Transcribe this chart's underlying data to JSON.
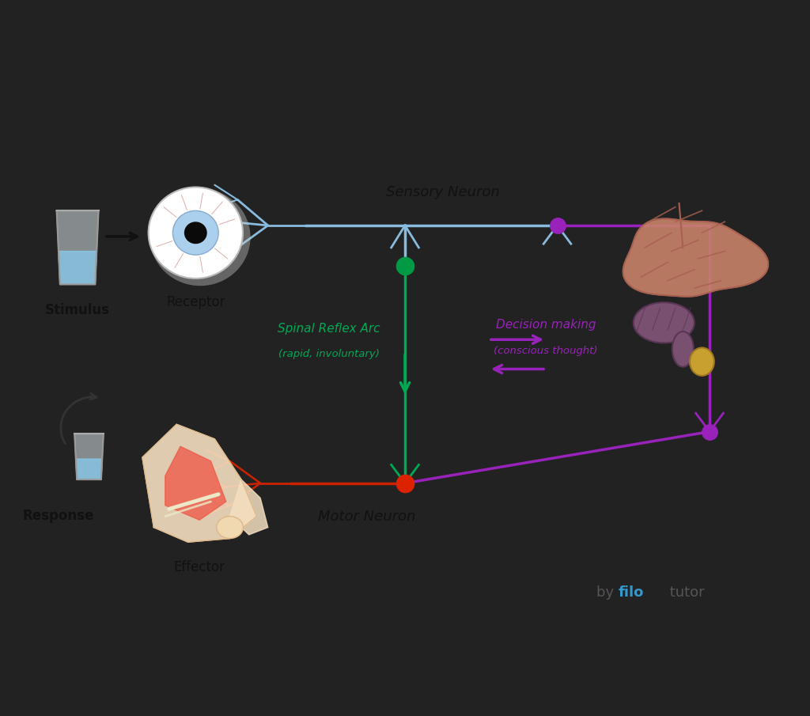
{
  "bg_outer": "#222222",
  "bg_inner": "#f5f3f8",
  "sensory_color": "#88bbdd",
  "motor_color": "#cc2200",
  "spinal_color": "#00aa55",
  "purple_color": "#9922bb",
  "green_node": "#009944",
  "red_node": "#dd2200",
  "purple_node": "#9922bb",
  "text_dark": "#111111",
  "spinal_text": "#00aa55",
  "decision_text": "#9922bb",
  "filo_color": "#3399cc",
  "stimulus_label": "Stimulus",
  "receptor_label": "Receptor",
  "response_label": "Response",
  "effector_label": "Effector",
  "sensory_label": "Sensory Neuron",
  "motor_label": "Motor Neuron",
  "spinal_label": "Spinal Reflex Arc",
  "spinal_sub": "(rapid, involuntary)",
  "decision_label": "Decision making",
  "decision_sub": "(conscious thought)"
}
